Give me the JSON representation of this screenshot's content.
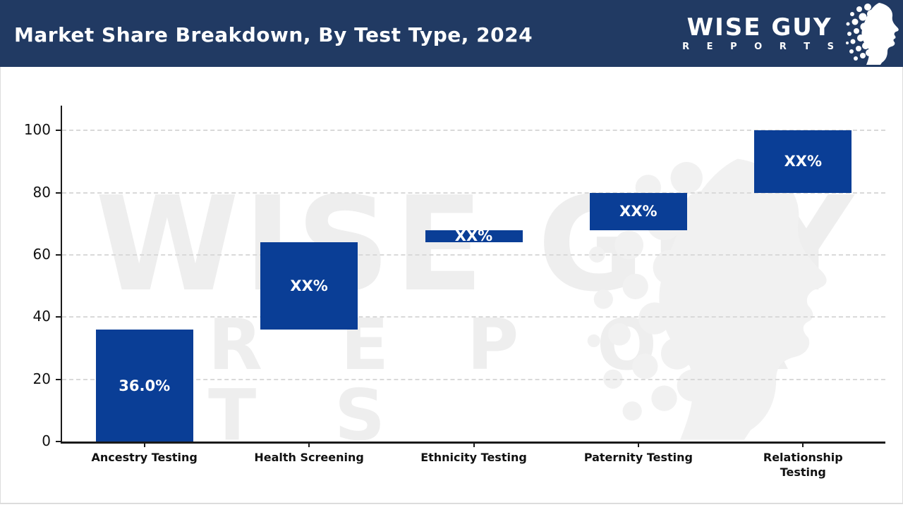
{
  "header": {
    "title": "Market Share Breakdown, By Test Type, 2024",
    "bg_color": "#213A63",
    "logo": {
      "line1": "WISE GUY",
      "line2": "R E P O R T S"
    }
  },
  "watermark": {
    "line1": "WISE GUY",
    "line2": "R E P O R T S"
  },
  "chart_data": {
    "type": "bar",
    "subtype": "waterfall",
    "title": "Market Share Breakdown, By Test Type, 2024",
    "xlabel": "",
    "ylabel": "",
    "categories": [
      "Ancestry Testing",
      "Health Screening",
      "Ethnicity Testing",
      "Paternity Testing",
      "Relationship Testing"
    ],
    "segments": [
      {
        "category": "Ancestry Testing",
        "start": 0,
        "end": 36,
        "value": 36,
        "label": "36.0%"
      },
      {
        "category": "Health Screening",
        "start": 36,
        "end": 64,
        "value": 28,
        "label": "XX%"
      },
      {
        "category": "Ethnicity Testing",
        "start": 64,
        "end": 68,
        "value": 4,
        "label": "XX%"
      },
      {
        "category": "Paternity Testing",
        "start": 68,
        "end": 80,
        "value": 12,
        "label": "XX%"
      },
      {
        "category": "Relationship Testing",
        "start": 80,
        "end": 100,
        "value": 20,
        "label": "XX%"
      }
    ],
    "yticks": [
      0,
      20,
      40,
      60,
      80,
      100
    ],
    "ylim": [
      0,
      108
    ],
    "grid": "horizontal-dashed",
    "legend": "none",
    "bar_color": "#0A3E96",
    "grid_color": "#d9d9d9",
    "tick_label_color": "#111111",
    "bar_label_color": "#ffffff"
  }
}
